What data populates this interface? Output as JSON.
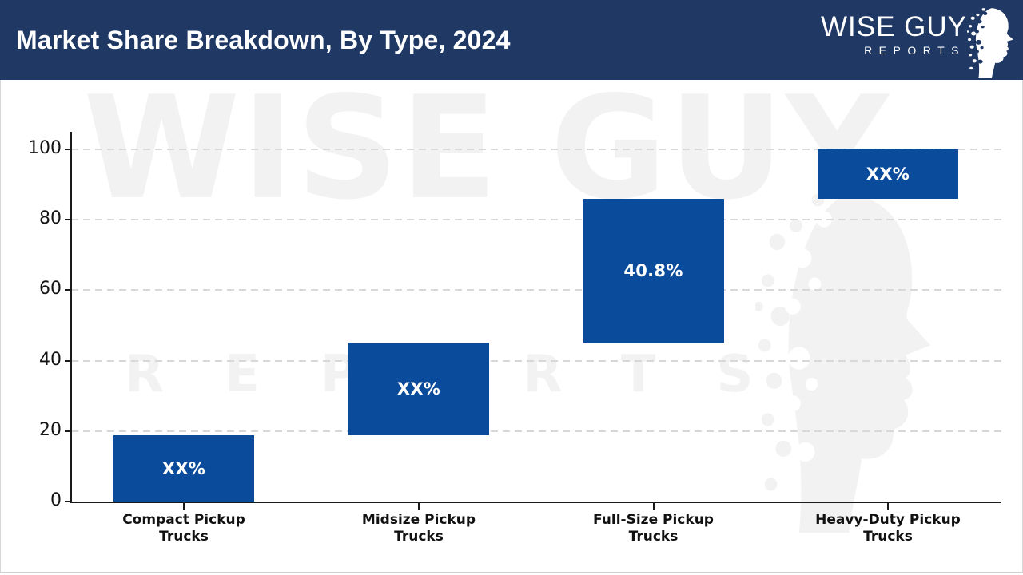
{
  "header": {
    "title": "Market Share Breakdown, By Type, 2024",
    "logo": {
      "line1": "WISE GUY",
      "line2": "REPORTS"
    }
  },
  "watermark": {
    "line1": "WISE GUY",
    "line2": "REPORTS"
  },
  "colors": {
    "header_background": "#1f3864",
    "bar_fill": "#0a4b9b",
    "value_label": "#ffffff",
    "gridline": "#d8d8d8",
    "axis": "#1a1a1a",
    "watermark": "#f2f2f2"
  },
  "chart_data": {
    "type": "bar",
    "subtype": "waterfall",
    "title": "Market Share Breakdown, By Type, 2024",
    "xlabel": "",
    "ylabel": "",
    "ylim": [
      0,
      105
    ],
    "y_ticks": [
      0,
      20,
      40,
      60,
      80,
      100
    ],
    "grid": "horizontal-dashed",
    "legend": "none",
    "categories": [
      "Compact Pickup Trucks",
      "Midsize Pickup Trucks",
      "Full-Size Pickup Trucks",
      "Heavy-Duty Pickup Trucks"
    ],
    "category_lines": [
      [
        "Compact Pickup",
        "Trucks"
      ],
      [
        "Midsize Pickup",
        "Trucks"
      ],
      [
        "Full-Size Pickup",
        "Trucks"
      ],
      [
        "Heavy-Duty Pickup",
        "Trucks"
      ]
    ],
    "bars": [
      {
        "category": "Compact Pickup Trucks",
        "label": "XX%",
        "start": 0,
        "end": 18.8
      },
      {
        "category": "Midsize Pickup Trucks",
        "label": "XX%",
        "start": 18.8,
        "end": 45.2
      },
      {
        "category": "Full-Size Pickup Trucks",
        "label": "40.8%",
        "start": 45.2,
        "end": 86.0
      },
      {
        "category": "Heavy-Duty Pickup Trucks",
        "label": "XX%",
        "start": 86.0,
        "end": 100.0
      }
    ]
  }
}
